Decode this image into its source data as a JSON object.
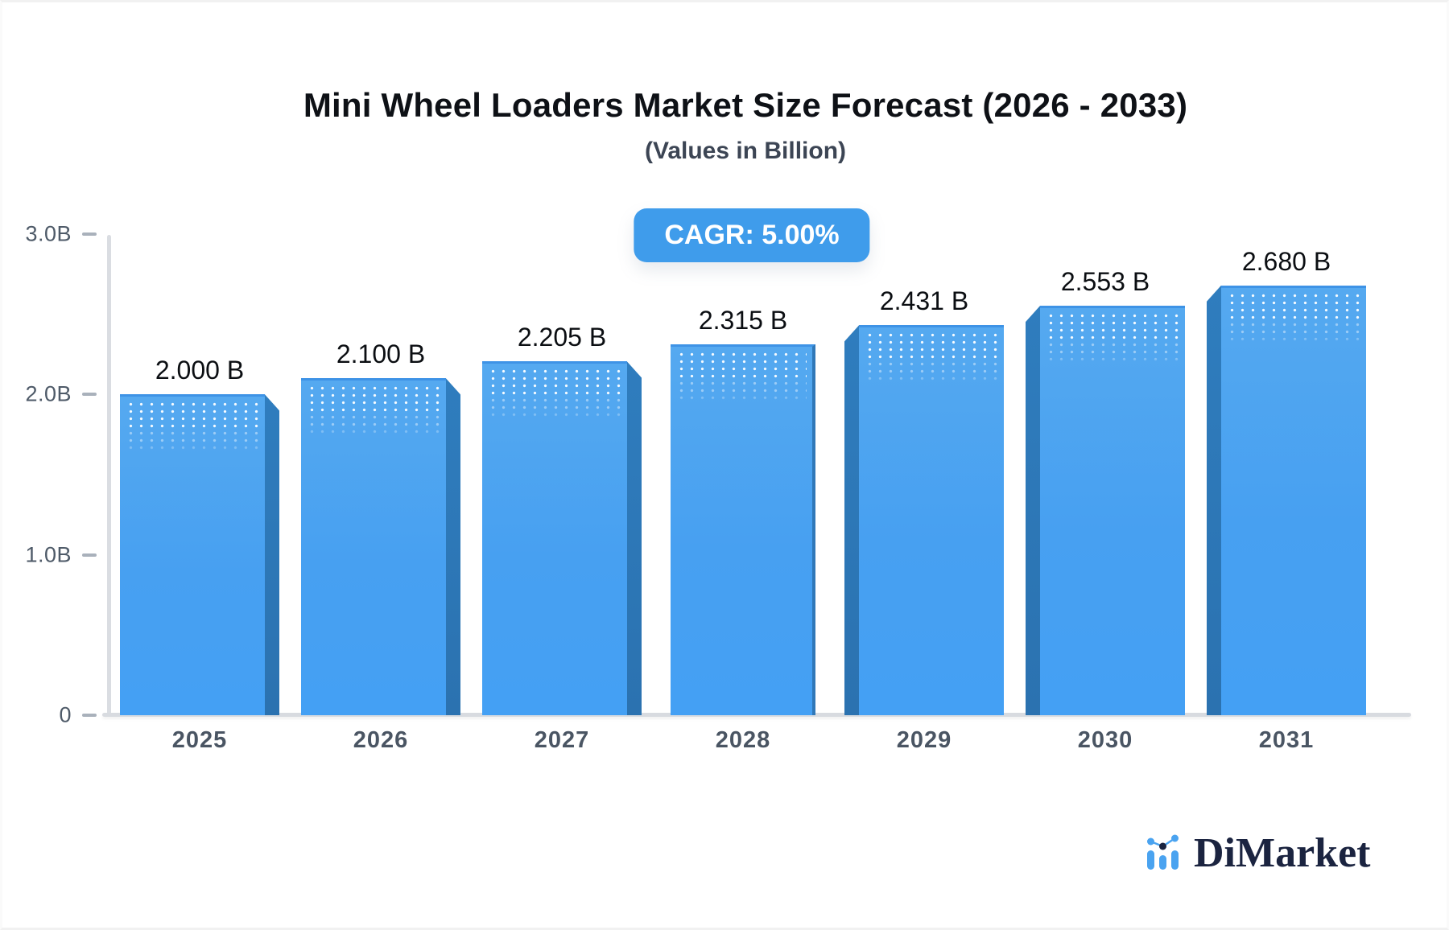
{
  "chart_data": {
    "type": "bar",
    "title": "Mini Wheel Loaders Market Size Forecast (2026 - 2033)",
    "subtitle": "(Values in Billion)",
    "cagr_label": "CAGR: 5.00%",
    "categories": [
      "2025",
      "2026",
      "2027",
      "2028",
      "2029",
      "2030",
      "2031"
    ],
    "values": [
      2.0,
      2.1,
      2.205,
      2.315,
      2.431,
      2.553,
      2.68
    ],
    "value_labels": [
      "2.000 B",
      "2.100 B",
      "2.205 B",
      "2.315 B",
      "2.431 B",
      "2.553 B",
      "2.680 B"
    ],
    "yticks": [
      {
        "label": "0",
        "value": 0
      },
      {
        "label": "1.0B",
        "value": 1
      },
      {
        "label": "2.0B",
        "value": 2
      },
      {
        "label": "3.0B",
        "value": 3
      }
    ],
    "ylim": [
      0,
      3
    ],
    "xlabel": "",
    "ylabel": "",
    "legend": null,
    "grid": false,
    "units": "Billion",
    "colors": {
      "bar_face": "#47a0f1",
      "bar_face_top_edge": "#3e93e6",
      "bar_side_3d": "#2d77b7",
      "badge_background": "#3f9ceb",
      "badge_text": "#ffffff",
      "axis_line": "#d8dbe0",
      "tick_text": "#4e5a68",
      "category_text": "#4a5563",
      "value_text": "#0b0e12",
      "title_text": "#0e1116"
    }
  },
  "footer": {
    "logo_text": "DiMarket",
    "logo_icon": "bar-chart-sparkline-icon",
    "logo_color": "#1b2440",
    "logo_icon_color": "#4aa3f0"
  }
}
